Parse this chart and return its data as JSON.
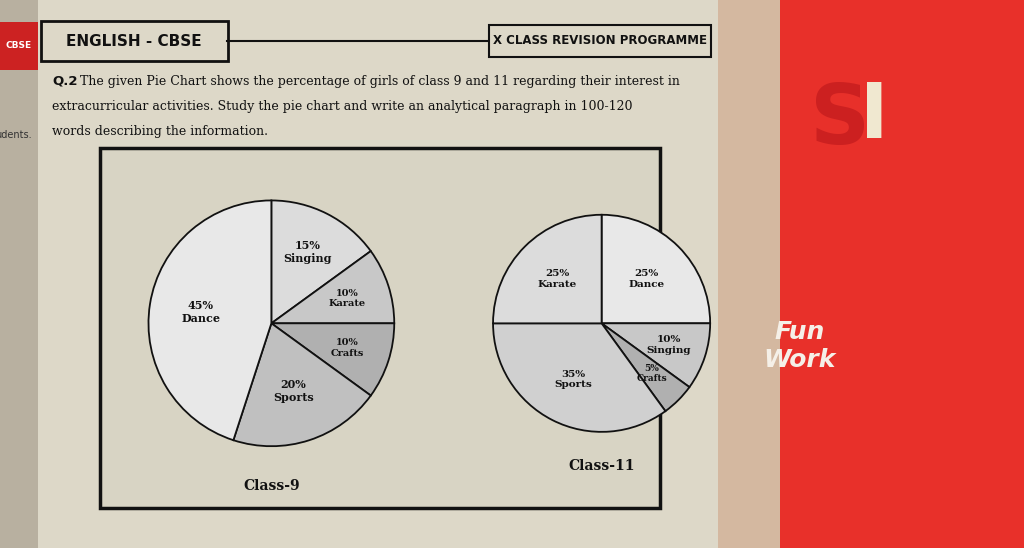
{
  "header_label": "ENGLISH - CBSE",
  "banner_label": "X CLASS REVISION PROGRAMME",
  "q_number": "Q.2",
  "question_line1": "The given Pie Chart shows the percentage of girls of class 9 and 11 regarding their interest in",
  "question_line2": "extracurricular activities. Study the pie chart and write an analytical paragraph in 100-120",
  "question_line3": "words describing the information.",
  "class9": {
    "title": "Class-9",
    "labels": [
      "Singing",
      "Karate",
      "Crafts",
      "Sports",
      "Dance"
    ],
    "sizes": [
      15,
      10,
      10,
      20,
      45
    ],
    "startangle": 90,
    "colors": [
      "#dcdcdc",
      "#c8c8c8",
      "#b0b0b0",
      "#c0c0c0",
      "#e8e8e8"
    ]
  },
  "class11": {
    "title": "Class-11",
    "labels": [
      "Dance",
      "Singing",
      "Crafts",
      "Sports",
      "Karate"
    ],
    "sizes": [
      25,
      10,
      5,
      35,
      25
    ],
    "startangle": 90,
    "colors": [
      "#e8e8e8",
      "#c8c8c8",
      "#b0b0b0",
      "#d0d0d0",
      "#dcdcdc"
    ]
  },
  "page_bg": "#c8bfaa",
  "book_bg": "#ddd8c8",
  "right_bg": "#e8302a",
  "chart_box_bg": "#d8d4c4",
  "text_dark": "#111111",
  "cbse_red": "#cc2222"
}
